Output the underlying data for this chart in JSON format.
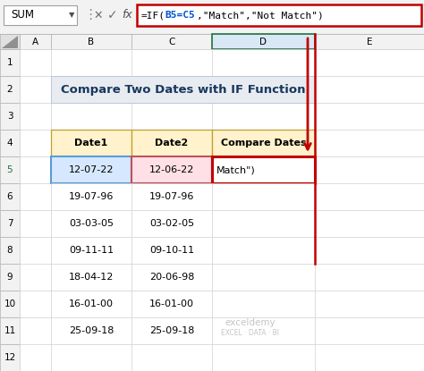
{
  "title": "Compare Two Dates with IF Function",
  "formula_name": "SUM",
  "col_headers": [
    "A",
    "B",
    "C",
    "D",
    "E"
  ],
  "row_numbers": [
    "1",
    "2",
    "3",
    "4",
    "5",
    "6",
    "7",
    "8",
    "9",
    "10",
    "11",
    "12"
  ],
  "header_row": [
    "Date1",
    "Date2",
    "Compare Dates"
  ],
  "data_rows": [
    [
      "12-07-22",
      "12-06-22",
      "Match\")"
    ],
    [
      "19-07-96",
      "19-07-96",
      ""
    ],
    [
      "03-03-05",
      "03-02-05",
      ""
    ],
    [
      "09-11-11",
      "09-10-11",
      ""
    ],
    [
      "18-04-12",
      "20-06-98",
      ""
    ],
    [
      "16-01-00",
      "16-01-00",
      ""
    ],
    [
      "25-09-18",
      "25-09-18",
      ""
    ]
  ],
  "bg_color": "#FFFFFF",
  "toolbar_bg": "#F2F2F2",
  "title_bg": "#E8ECF0",
  "title_color": "#17375E",
  "header_bg": "#FFF2CC",
  "header_border": "#BFA030",
  "cell_bg": "#FFFFFF",
  "cell_border": "#D0D0D0",
  "selected_b5_bg": "#D6E8FF",
  "selected_c5_bg": "#FFE0E6",
  "selected_b5_border": "#5B9BD5",
  "selected_c5_border": "#C0505A",
  "selected_d5_border": "#C00000",
  "formula_bar_bg": "#FFFFFF",
  "formula_bar_border": "#C00000",
  "row_num_bg": "#F2F2F2",
  "col_header_bg": "#F2F2F2",
  "col_d_header_bg": "#D9E8F5",
  "col_d_header_border": "#207040",
  "arrow_color": "#C00000",
  "red_line_color": "#C00000",
  "watermark_color": "#BBBBBB",
  "green_row_marker": "#207040"
}
